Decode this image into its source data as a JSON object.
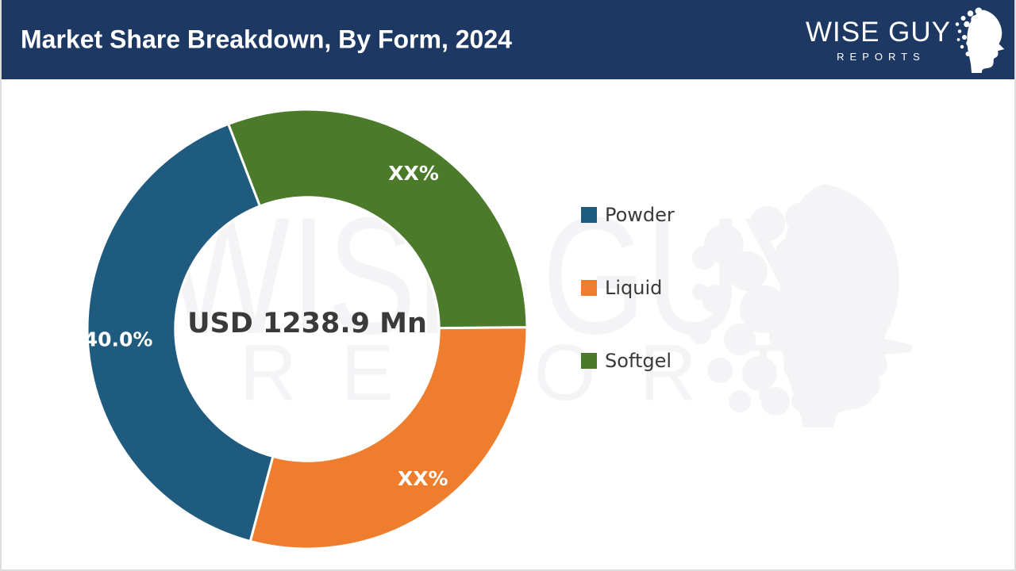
{
  "header": {
    "title": "Market Share Breakdown, By Form, 2024",
    "logo": {
      "line1": "WISE GUY",
      "line2": "REPORTS"
    }
  },
  "watermark": {
    "line1": "WISE GUY",
    "line2": "REPORTS"
  },
  "chart_data": {
    "type": "pie",
    "subtype": "donut",
    "title": "Market Share Breakdown, By Form, 2024",
    "center_label": "USD 1238.9 Mn",
    "start_angle_deg": 111,
    "direction": "counterclockwise",
    "hole_ratio": 0.6,
    "legend_position": "right",
    "segments": [
      {
        "name": "Powder",
        "value": 40.0,
        "label": "40.0%",
        "color": "#1F5B7F"
      },
      {
        "name": "Liquid",
        "value": 29.3,
        "label": "XX%",
        "color": "#EE7D2D"
      },
      {
        "name": "Softgel",
        "value": 30.7,
        "label": "XX%",
        "color": "#4B7A2B"
      }
    ],
    "colors": {
      "center_text": "#3A3A3A",
      "segment_label_text": "#FFFFFF",
      "segment_gap": "#FFFFFF"
    }
  },
  "theme": {
    "header_bg": "#1E3864",
    "body_bg": "#FFFFFF",
    "page_border": "#DCDCDC",
    "watermark": "#F4F4F6",
    "text_dark": "#3A3A3A"
  }
}
